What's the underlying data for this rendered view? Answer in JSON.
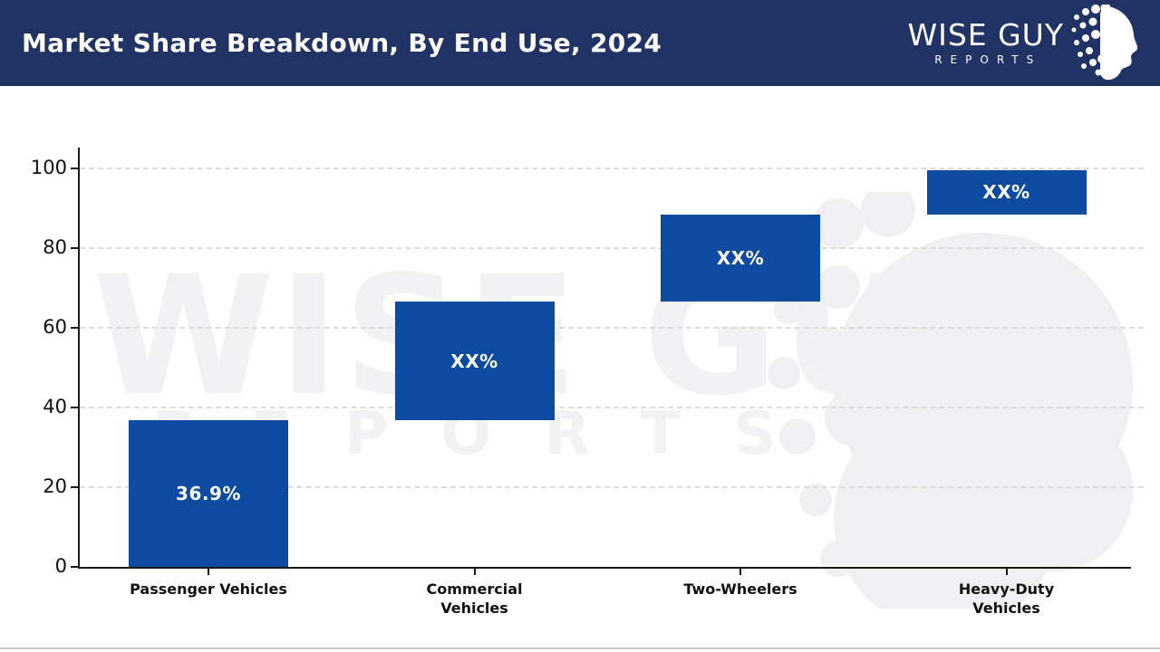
{
  "header": {
    "title": "Market Share Breakdown, By End Use, 2024",
    "background_color": "#203364",
    "logo": {
      "name": "WISE GUY",
      "tagline": "REPORTS"
    }
  },
  "watermark": {
    "name": "WISE GUY",
    "tagline": "REPORTS"
  },
  "chart_data": {
    "type": "bar",
    "subtype": "waterfall",
    "title": "Market Share Breakdown, By End Use, 2024",
    "xlabel": "",
    "ylabel": "",
    "ylim": [
      0,
      105
    ],
    "yticks": [
      0,
      20,
      40,
      60,
      80,
      100
    ],
    "grid": "horizontal-dashed",
    "legend": "none",
    "bar_color": "#0c4b9f",
    "bar_label_color": "#ffffff",
    "grid_color": "#dcdcdc",
    "axis_color": "#1a1a1a",
    "categories": [
      "Passenger Vehicles",
      "Commercial Vehicles",
      "Two-Wheelers",
      "Heavy-Duty Vehicles"
    ],
    "category_tick_lines": [
      [
        "Passenger Vehicles"
      ],
      [
        "Commercial",
        "Vehicles"
      ],
      [
        "Two-Wheelers"
      ],
      [
        "Heavy-Duty",
        "Vehicles"
      ]
    ],
    "segments": [
      {
        "category": "Passenger Vehicles",
        "start": 0,
        "end": 36.9,
        "label": "36.9%"
      },
      {
        "category": "Commercial Vehicles",
        "start": 36.9,
        "end": 66.5,
        "label": "XX%"
      },
      {
        "category": "Two-Wheelers",
        "start": 66.5,
        "end": 88.5,
        "label": "XX%"
      },
      {
        "category": "Heavy-Duty Vehicles",
        "start": 88.5,
        "end": 99.6,
        "label": "XX%"
      }
    ]
  }
}
